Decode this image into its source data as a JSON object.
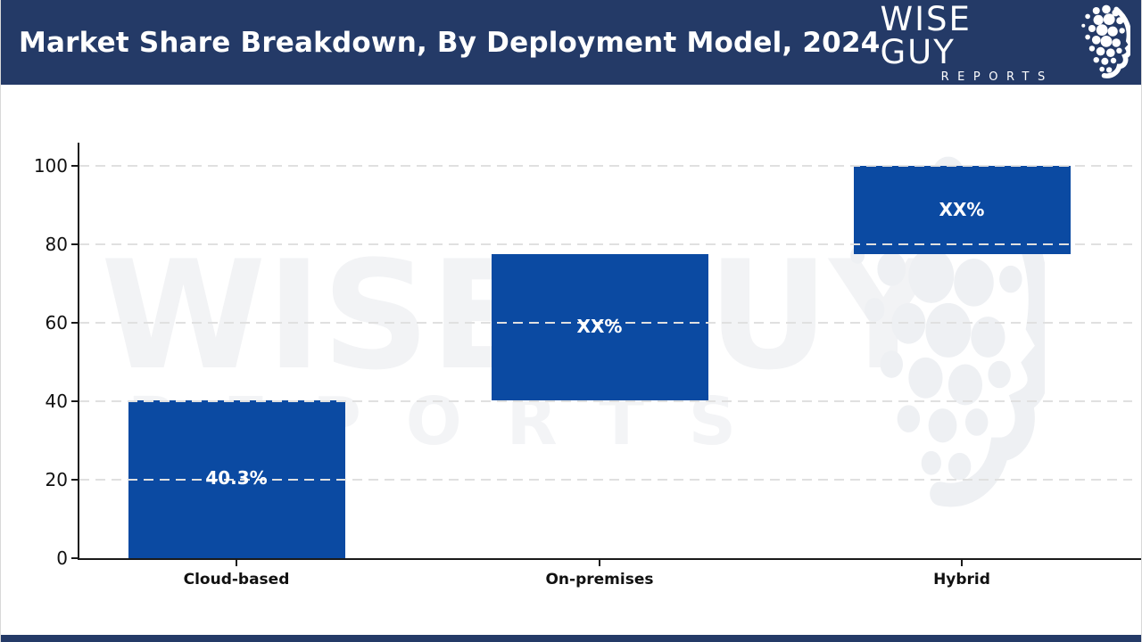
{
  "header": {
    "title": "Market Share Breakdown, By Deployment Model, 2024",
    "logo": {
      "line1": "WISE GUY",
      "line2": "REPORTS"
    }
  },
  "watermark": {
    "line1": "WISE GUY",
    "line2": "REPORTS"
  },
  "colors": {
    "header_bg": "#243a67",
    "bar": "#0b4aa2",
    "grid": "#e0e0e0",
    "axis": "#1a1a1a",
    "bar_label": "#ffffff",
    "tick_label": "#111111",
    "title_text": "#ffffff"
  },
  "chart_data": {
    "type": "bar",
    "subtype": "waterfall-segments",
    "title": "Market Share Breakdown, By Deployment Model, 2024",
    "categories": [
      "Cloud-based",
      "On-premises",
      "Hybrid"
    ],
    "segments": [
      {
        "category": "Cloud-based",
        "start": 0,
        "end": 40.3,
        "label": "40.3%"
      },
      {
        "category": "On-premises",
        "start": 40.3,
        "end": 77.5,
        "label": "XX%"
      },
      {
        "category": "Hybrid",
        "start": 77.5,
        "end": 100,
        "label": "XX%"
      }
    ],
    "ylim": [
      0,
      100
    ],
    "yticks": [
      0,
      20,
      40,
      60,
      80,
      100
    ],
    "xlabel": "",
    "ylabel": "",
    "grid": "horizontal-dashed",
    "legend": "none"
  }
}
